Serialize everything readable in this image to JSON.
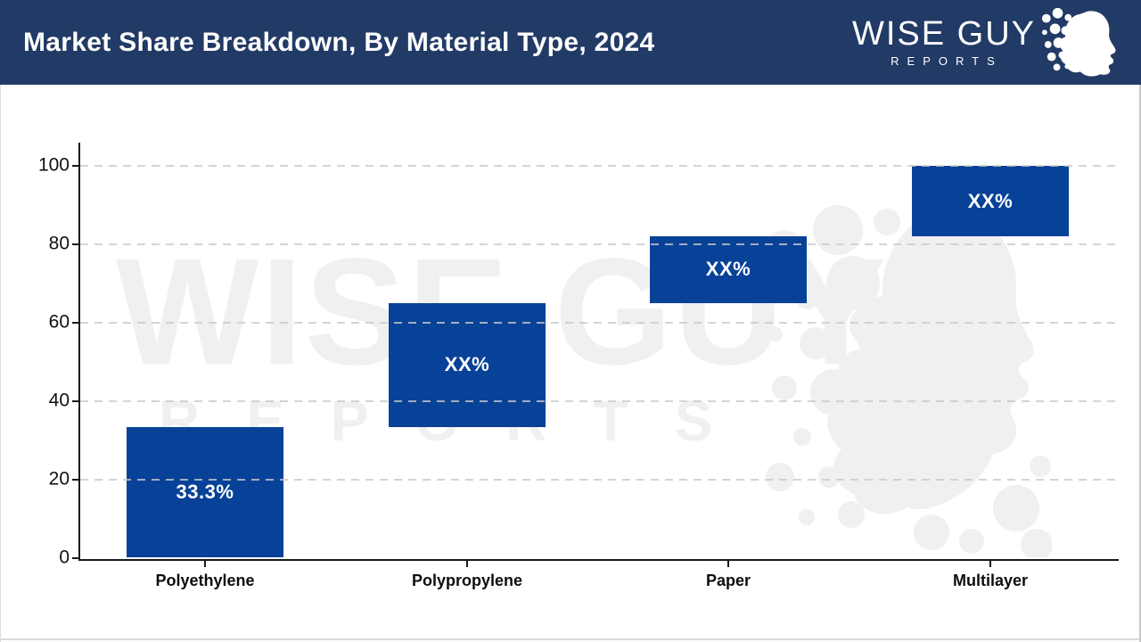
{
  "header": {
    "title": "Market Share Breakdown, By Material Type, 2024",
    "bg_color": "#223a66",
    "logo": {
      "line1": "WISE GUY",
      "line2": "REPORTS"
    }
  },
  "watermark": {
    "line1": "WISE GUY",
    "line2": "REPORTS"
  },
  "colors": {
    "header_navy": "#223a66",
    "bar_blue": "#084298",
    "bar_label_white": "#ffffff",
    "axis_black": "#1a1a1a",
    "gridline_gray": "#c9c9c9",
    "watermark_gray": "#f0f0f0"
  },
  "chart_data": {
    "type": "bar",
    "subtype": "waterfall-floating-bars",
    "title": "Market Share Breakdown, By Material Type, 2024",
    "categories": [
      "Polyethylene",
      "Polypropylene",
      "Paper",
      "Multilayer"
    ],
    "series": [
      {
        "name": "Market Share (%)",
        "segments": [
          {
            "category": "Polyethylene",
            "start": 0,
            "end": 33.3,
            "label": "33.3%"
          },
          {
            "category": "Polypropylene",
            "start": 33.3,
            "end": 65,
            "label": "XX%"
          },
          {
            "category": "Paper",
            "start": 65,
            "end": 82,
            "label": "XX%"
          },
          {
            "category": "Multilayer",
            "start": 82,
            "end": 100,
            "label": "XX%"
          }
        ]
      }
    ],
    "xlabel": "",
    "ylabel": "",
    "ylim": [
      0,
      100
    ],
    "yticks": [
      0,
      20,
      40,
      60,
      80,
      100
    ],
    "grid": "horizontal-dashed, drawn above bars",
    "legend": "none"
  }
}
